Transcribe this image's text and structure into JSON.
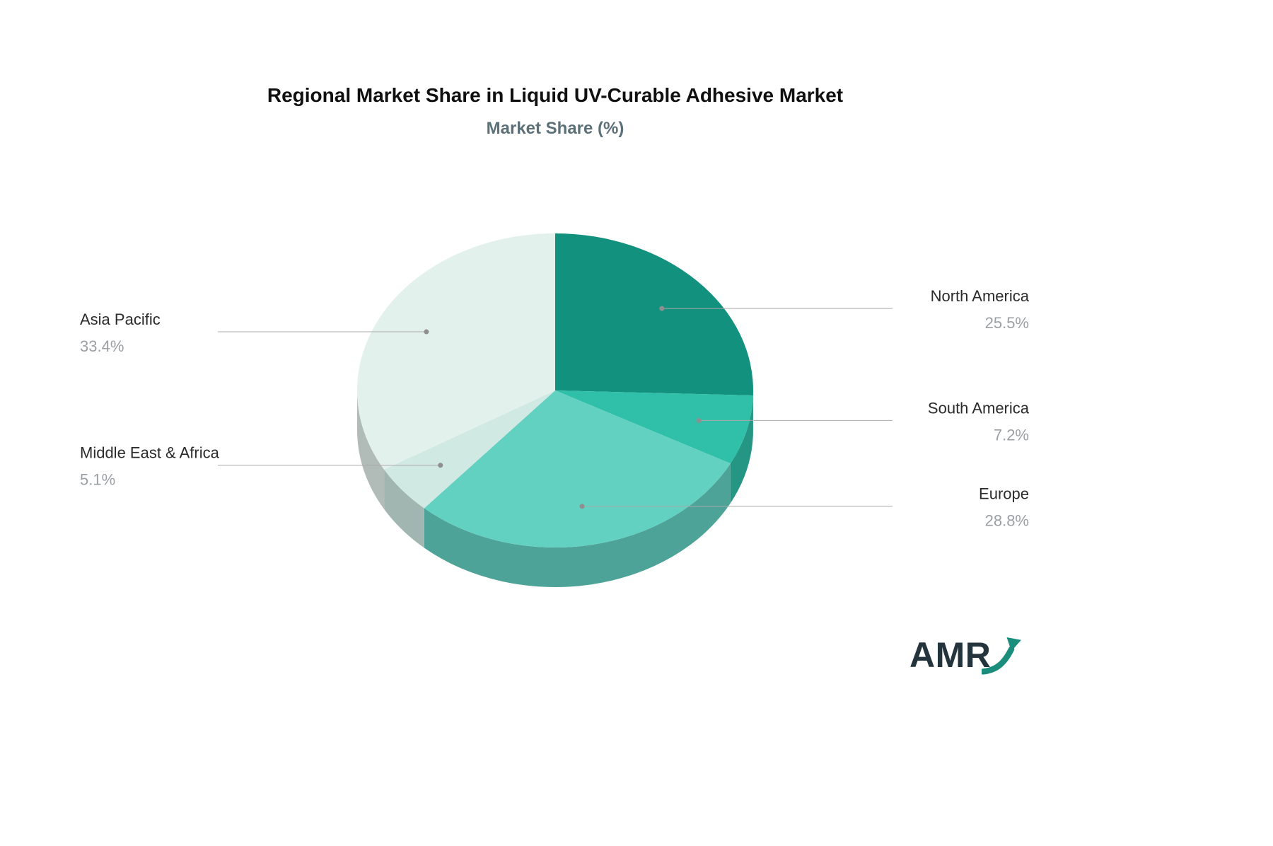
{
  "header": {
    "title": "Regional Market Share in Liquid UV-Curable Adhesive Market",
    "subtitle": "Market Share (%)"
  },
  "chart_data": {
    "type": "pie",
    "style": "3d",
    "title": "Regional Market Share in Liquid UV-Curable Adhesive Market",
    "subtitle": "Market Share (%)",
    "unit": "%",
    "legend": "none",
    "label_style": "leader-lines",
    "start_angle_deg": 0,
    "direction": "clockwise",
    "slices": [
      {
        "label": "North America",
        "value": 25.5,
        "display": "25.5%",
        "color": "#12917f"
      },
      {
        "label": "South America",
        "value": 7.2,
        "display": "7.2%",
        "color": "#30c0a9"
      },
      {
        "label": "Europe",
        "value": 28.8,
        "display": "28.8%",
        "color": "#63d1c1"
      },
      {
        "label": "Middle East & Africa",
        "value": 5.1,
        "display": "5.1%",
        "color": "#d0e9e3"
      },
      {
        "label": "Asia Pacific",
        "value": 33.4,
        "display": "33.4%",
        "color": "#e3f1ec"
      }
    ]
  },
  "logo": {
    "text": "AMR",
    "color": "#24343c",
    "arrow_color": "#1b8d7d"
  }
}
